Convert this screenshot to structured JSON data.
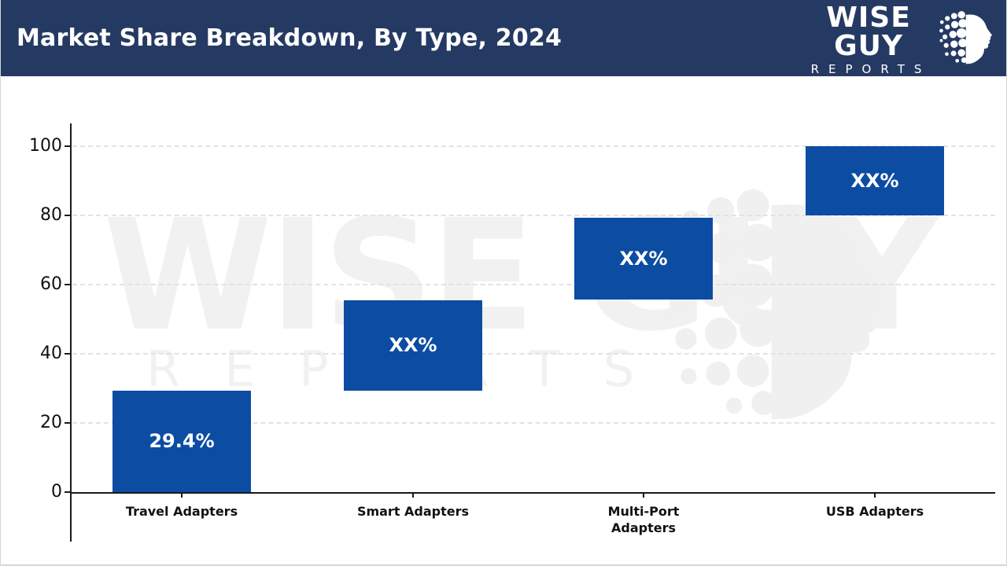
{
  "header": {
    "title": "Market Share Breakdown, By Type, 2024",
    "logo": {
      "line1": "WISE GUY",
      "line2": "REPORTS"
    }
  },
  "watermark": {
    "line1": "WISE GUY",
    "line2": "REPORTS"
  },
  "chart_data": {
    "type": "bar",
    "subtype": "floating-waterfall",
    "title": "Market Share Breakdown, By Type, 2024",
    "categories": [
      "Travel Adapters",
      "Smart Adapters",
      "Multi-Port Adapters",
      "USB Adapters"
    ],
    "bars": [
      {
        "category": "Travel Adapters",
        "start": 0,
        "end": 29.4,
        "label": "29.4%"
      },
      {
        "category": "Smart Adapters",
        "start": 29.4,
        "end": 55.5,
        "label": "XX%"
      },
      {
        "category": "Multi-Port Adapters",
        "start": 55.7,
        "end": 79.4,
        "label": "XX%"
      },
      {
        "category": "USB Adapters",
        "start": 80,
        "end": 100,
        "label": "XX%"
      }
    ],
    "ylim": [
      0,
      100
    ],
    "yticks": [
      0,
      20,
      40,
      60,
      80,
      100
    ],
    "xlabel": "",
    "ylabel": "",
    "grid": "horizontal-dashed",
    "legend": "none",
    "bar_color": "#0c4ca3",
    "bar_label_color": "#ffffff",
    "background_color": "#ffffff",
    "header_color": "#253a63"
  }
}
